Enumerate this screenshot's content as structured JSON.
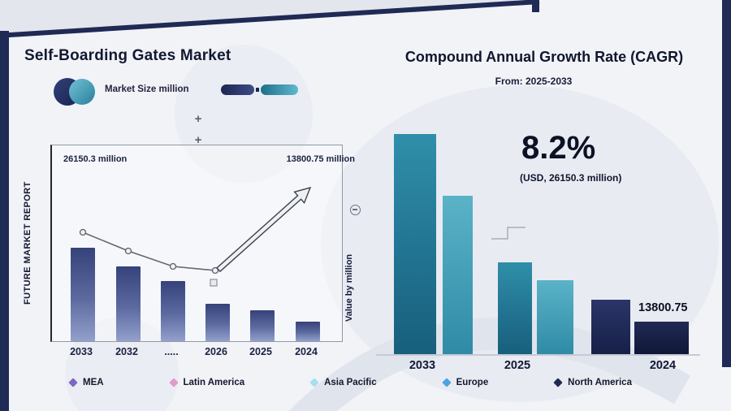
{
  "decor": {
    "plus": "+"
  },
  "colors": {
    "navy": "#1f2a55",
    "teal": "#2f8fa9",
    "background": "#f2f3f7"
  },
  "chart_data": [
    {
      "type": "bar",
      "title": "Self-Boarding Gates Market",
      "series_label": "Market Size million",
      "side_label": "FUTURE MARKET REPORT",
      "categories": [
        "2033",
        "2032",
        ".....",
        "2026",
        "2025",
        "2024"
      ],
      "values_relative": [
        1.0,
        0.8,
        0.64,
        0.4,
        0.33,
        0.21
      ],
      "labeled_values": {
        "2033": "26150.3 million",
        "2024": "13800.75 million"
      },
      "annotations": "declining marker line from 2033 to 2026 with breakout outline arrow rising to top-right",
      "legend_position": "top-left",
      "grid": false
    },
    {
      "type": "bar",
      "title": "Compound Annual Growth Rate (CAGR)",
      "subtitle": "From: 2025-2033",
      "cagr_value": "8.2%",
      "cagr_detail": "(USD, 26150.3 million)",
      "ylabel": "Value by million",
      "categories": [
        "2033",
        "2025",
        "2024"
      ],
      "bars_relative": [
        1.0,
        0.72,
        0.42,
        0.34,
        0.25,
        0.15
      ],
      "bar_groups": {
        "2033": [
          0,
          1
        ],
        "2025": [
          2,
          3
        ],
        "2024": [
          4,
          5
        ]
      },
      "value_label": {
        "text": "13800.75",
        "position": "2024"
      },
      "grid": false
    }
  ],
  "legend": {
    "items": [
      {
        "label": "MEA",
        "color": "#7e66c2"
      },
      {
        "label": "Latin America",
        "color": "#de9ccb"
      },
      {
        "label": "Asia Pacific",
        "color": "#a5dff0"
      },
      {
        "label": "Europe",
        "color": "#49a5e2"
      },
      {
        "label": "North America",
        "color": "#1f2a55"
      }
    ]
  }
}
